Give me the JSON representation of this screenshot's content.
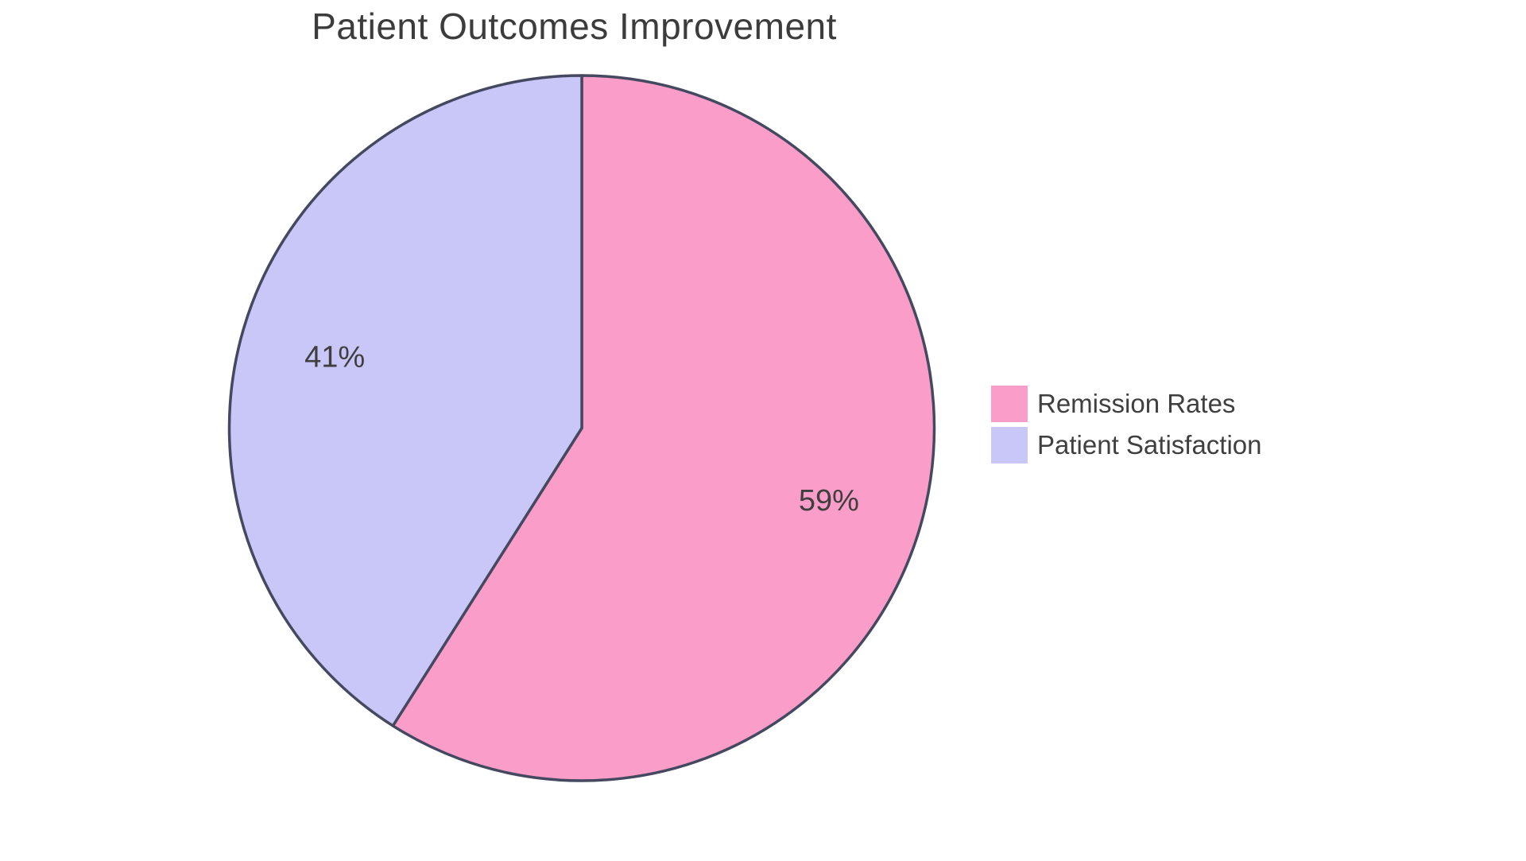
{
  "chart_data": {
    "type": "pie",
    "title": "Patient Outcomes Improvement",
    "slices": [
      {
        "label": "Remission Rates",
        "value": 59,
        "percent_label": "59%",
        "color": "#FA9EC9"
      },
      {
        "label": "Patient Satisfaction",
        "value": 41,
        "percent_label": "41%",
        "color": "#C9C6F8"
      }
    ],
    "start_angle": "12 o'clock",
    "direction": "clockwise",
    "stroke_color": "#454960",
    "label_color": "#3F3F3F",
    "title_color": "#3C3C3C",
    "background": "#FFFFFF",
    "legend_position": "right"
  }
}
